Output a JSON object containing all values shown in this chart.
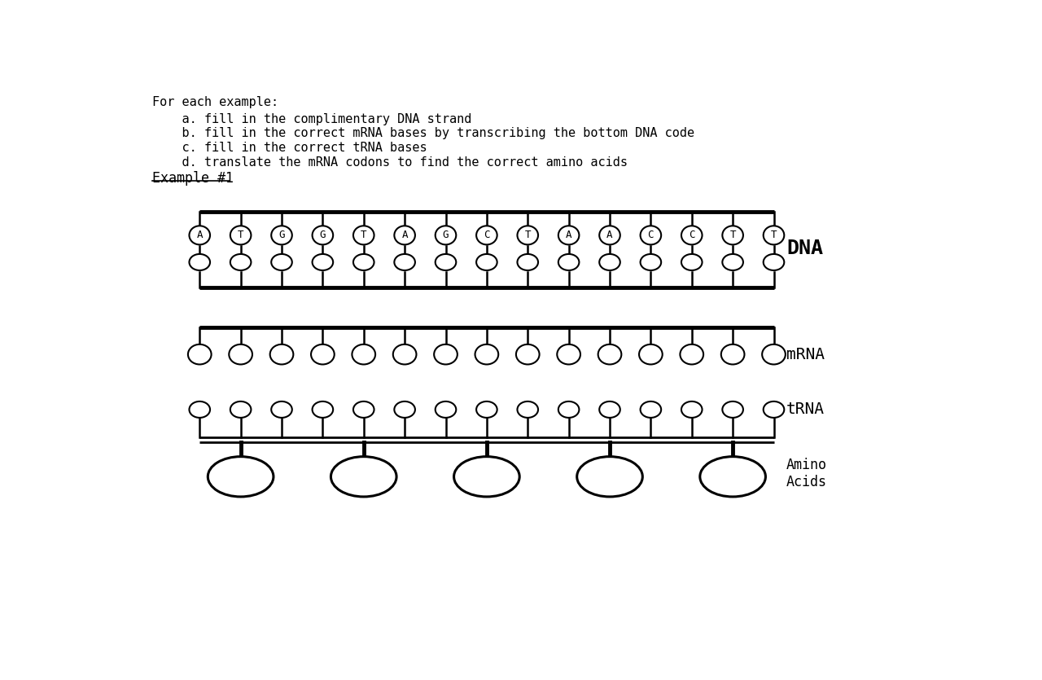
{
  "instructions_line0": "For each example:",
  "instructions": [
    "    a. fill in the complimentary DNA strand",
    "    b. fill in the correct mRNA bases by transcribing the bottom DNA code",
    "    c. fill in the correct tRNA bases",
    "    d. translate the mRNA codons to find the correct amino acids"
  ],
  "example_label": "Example #1",
  "dna_top": [
    "A",
    "T",
    "G",
    "G",
    "T",
    "A",
    "G",
    "C",
    "T",
    "A",
    "A",
    "C",
    "C",
    "T",
    "T"
  ],
  "n_bases": 15,
  "n_amino": 5,
  "label_dna": "DNA",
  "label_mrna": "mRNA",
  "label_trna": "tRNA",
  "label_amino": "Amino\nAcids",
  "bg_color": "#ffffff",
  "fg_color": "#000000",
  "font_family": "monospace"
}
